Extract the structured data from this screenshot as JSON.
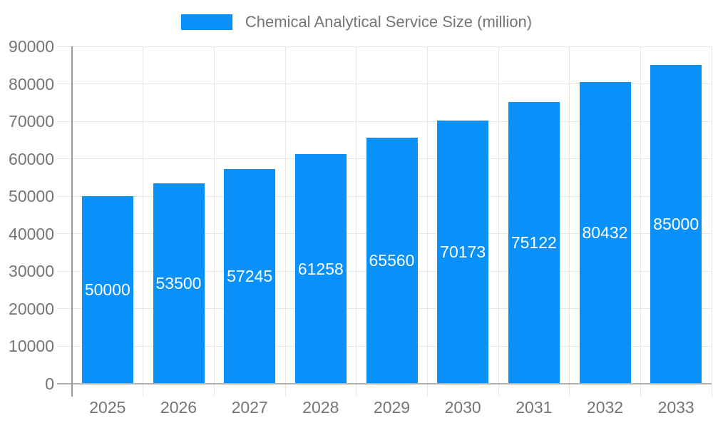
{
  "legend": {
    "label": "Chemical Analytical Service Size (million)"
  },
  "colors": {
    "bar": "#0991fb",
    "grid": "#e6e6e6",
    "y_axis": "#999999",
    "x_axis": "#b3b3b3",
    "tick_text": "#757575",
    "value_label_text": "#ffffff",
    "background": "#ffffff"
  },
  "chart_data": {
    "type": "bar",
    "title": "Chemical Analytical Service Size (million)",
    "categories": [
      "2025",
      "2026",
      "2027",
      "2028",
      "2029",
      "2030",
      "2031",
      "2032",
      "2033"
    ],
    "values": [
      50000,
      53500,
      57245,
      61258,
      65560,
      70173,
      75122,
      80432,
      85000
    ],
    "xlabel": "",
    "ylabel": "",
    "ylim": [
      0,
      90000
    ],
    "ytick_step": 10000,
    "y_tick_labels": [
      "0",
      "10000",
      "20000",
      "30000",
      "40000",
      "50000",
      "60000",
      "70000",
      "80000",
      "90000"
    ],
    "grid": true,
    "legend_position": "top-center",
    "value_labels": "inside-center-white"
  }
}
